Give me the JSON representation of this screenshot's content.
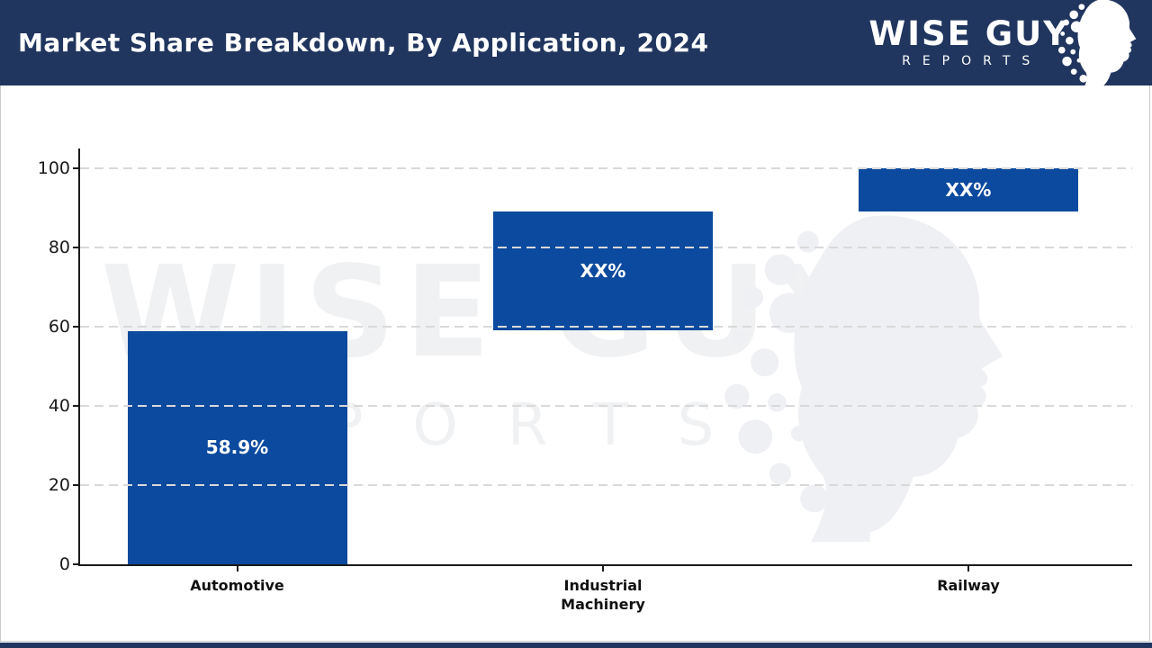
{
  "header": {
    "title": "Market Share Breakdown, By Application, 2024",
    "logo": {
      "line1": "WISE GUY",
      "line2": "REPORTS"
    }
  },
  "watermark": {
    "line1": "WISE GUY",
    "line2": "REPORTS"
  },
  "chart_data": {
    "type": "bar",
    "variant": "stacked-waterfall-floating-bars",
    "title": "Market Share Breakdown, By Application, 2024",
    "categories": [
      "Automotive",
      "Industrial Machinery",
      "Railway"
    ],
    "segments": [
      {
        "category": "Automotive",
        "start": 0,
        "end": 58.9,
        "label": "58.9%"
      },
      {
        "category": "Industrial Machinery",
        "start": 59,
        "end": 89,
        "label": "XX%"
      },
      {
        "category": "Railway",
        "start": 89,
        "end": 100,
        "label": "XX%"
      }
    ],
    "yticks": [
      0,
      20,
      40,
      60,
      80,
      100
    ],
    "ylim": [
      0,
      105
    ],
    "xlabel": "",
    "ylabel": "",
    "grid": "horizontal-dashed",
    "legend": "none",
    "bar_color": "#0b4a9e",
    "bar_label_color": "#ffffff"
  },
  "colors": {
    "header_bg": "#20365f",
    "footer_bg": "#20365f",
    "bar": "#0b4a9e",
    "gridline": "#d9d9d9",
    "axis": "#1a1a1a",
    "watermark": "#f0f1f3",
    "card_border": "#cbcbcb"
  }
}
